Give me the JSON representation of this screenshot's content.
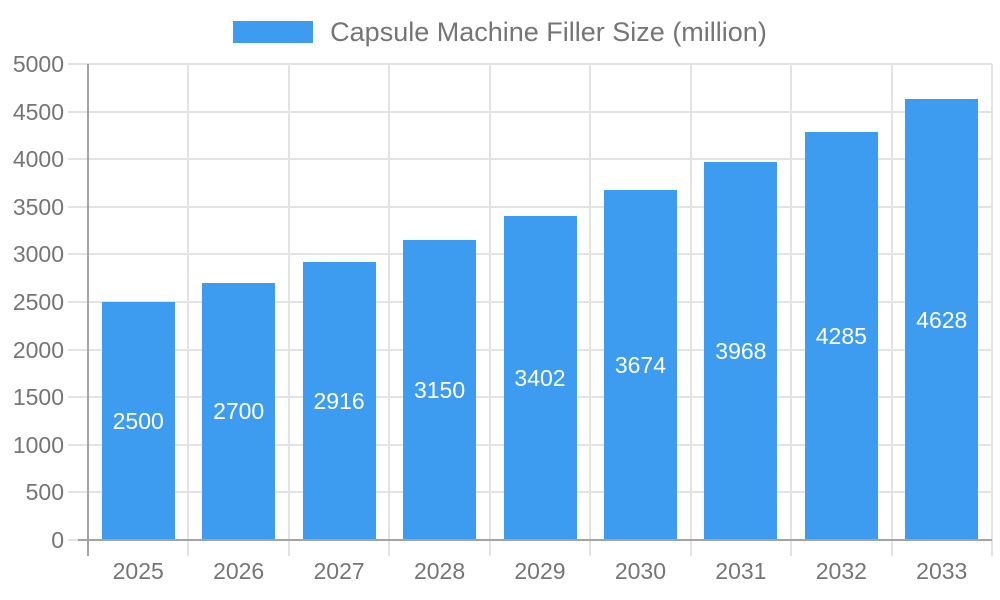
{
  "legend": {
    "label": "Capsule Machine Filler Size (million)"
  },
  "colors": {
    "bar": "#3d9cf0",
    "axis_text": "#757575",
    "grid_line": "#e3e3e3",
    "axis_line": "#a3a3a3",
    "bar_label_text": "#ffffff",
    "background": "#ffffff"
  },
  "chart_data": {
    "type": "bar",
    "title": "Capsule Machine Filler Size (million)",
    "categories": [
      "2025",
      "2026",
      "2027",
      "2028",
      "2029",
      "2030",
      "2031",
      "2032",
      "2033"
    ],
    "values": [
      2500,
      2700,
      2916,
      3150,
      3402,
      3674,
      3968,
      4285,
      4628
    ],
    "series": [
      {
        "name": "Capsule Machine Filler Size (million)",
        "values": [
          2500,
          2700,
          2916,
          3150,
          3402,
          3674,
          3968,
          4285,
          4628
        ]
      }
    ],
    "xlabel": "",
    "ylabel": "",
    "ylim": [
      0,
      5000
    ],
    "ytick_step": 500,
    "ytick_labels": [
      "0",
      "500",
      "1000",
      "1500",
      "2000",
      "2500",
      "3000",
      "3500",
      "4000",
      "4500",
      "5000"
    ],
    "grid": true,
    "legend_position": "top-center",
    "value_labels": "inside-center"
  }
}
